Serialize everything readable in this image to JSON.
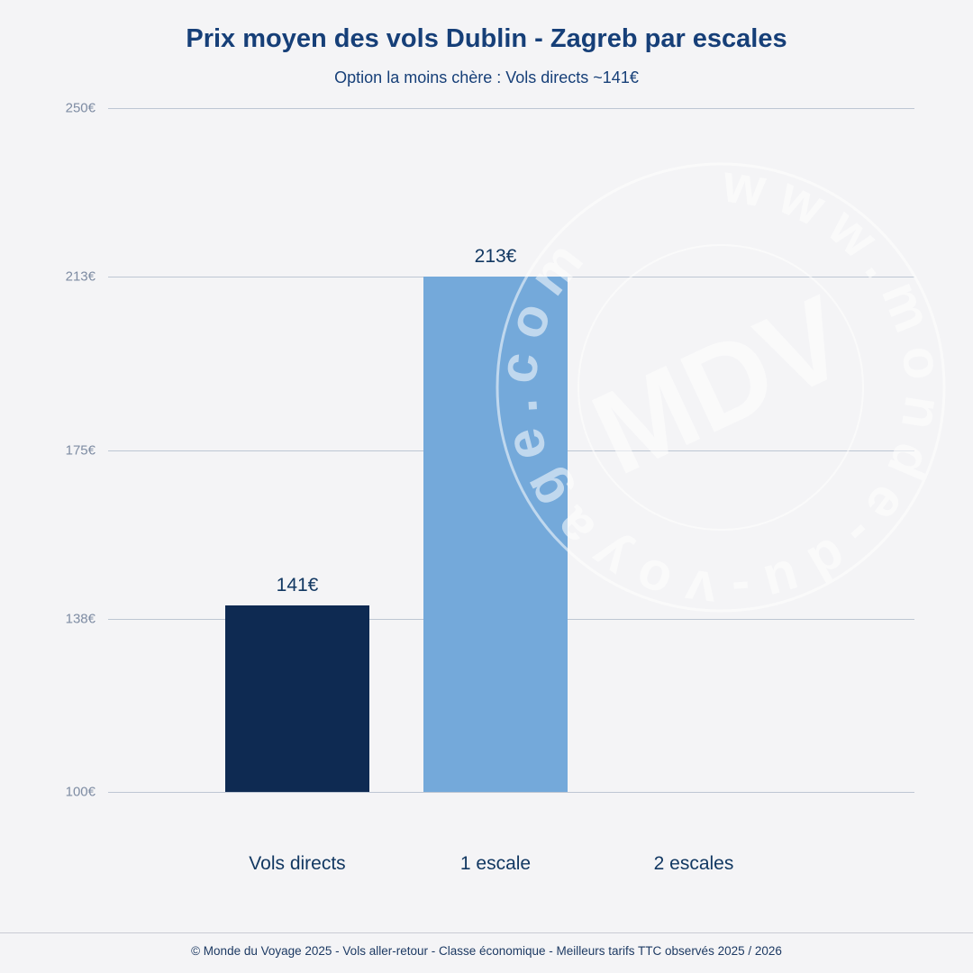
{
  "title": "Prix moyen des vols Dublin - Zagreb par escales",
  "subtitle": "Option la moins chère : Vols directs ~141€",
  "footer": "© Monde du Voyage 2025 - Vols aller-retour - Classe économique - Meilleurs tarifs TTC observés 2025 / 2026",
  "watermark": {
    "ring_text": "www.monde-du-voyage.com",
    "center_text": "MDV"
  },
  "colors": {
    "background": "#f4f4f6",
    "title": "#163f78",
    "grid": "#bdc6d3",
    "tick_label": "#7e8ca3",
    "bar_dark_navy": "#0e2a52",
    "bar_light_blue": "#74a9da",
    "text_navy": "#123862"
  },
  "chart_data": {
    "type": "bar",
    "title": "Prix moyen des vols Dublin - Zagreb par escales",
    "subtitle": "Option la moins chère : Vols directs ~141€",
    "categories": [
      "Vols directs",
      "1 escale",
      "2 escales"
    ],
    "values": [
      141,
      213,
      null
    ],
    "value_labels": [
      "141€",
      "213€",
      ""
    ],
    "bar_colors": [
      "#0e2a52",
      "#74a9da",
      null
    ],
    "xlabel": "",
    "ylabel": "",
    "ylim": [
      100,
      250
    ],
    "yticks": [
      250,
      213,
      175,
      138,
      100
    ],
    "ytick_labels": [
      "250€",
      "213€",
      "175€",
      "138€",
      "100€"
    ],
    "grid": true,
    "legend": false
  }
}
